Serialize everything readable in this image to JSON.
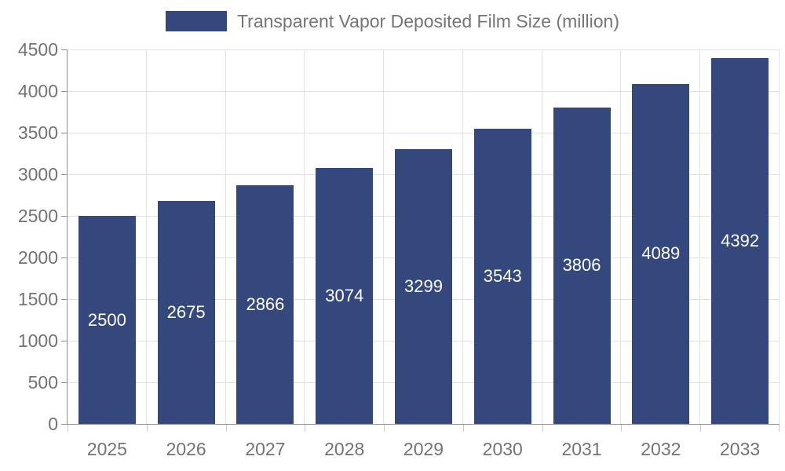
{
  "legend": {
    "label": "Transparent Vapor Deposited Film Size (million)"
  },
  "chart_data": {
    "type": "bar",
    "title": "",
    "xlabel": "",
    "ylabel": "",
    "categories": [
      "2025",
      "2026",
      "2027",
      "2028",
      "2029",
      "2030",
      "2031",
      "2032",
      "2033"
    ],
    "values": [
      2500,
      2675,
      2866,
      3074,
      3299,
      3543,
      3806,
      4089,
      4392
    ],
    "series_name": "Transparent Vapor Deposited Film Size (million)",
    "ylim": [
      0,
      4500
    ],
    "yticks": [
      0,
      500,
      1000,
      1500,
      2000,
      2500,
      3000,
      3500,
      4000,
      4500
    ],
    "grid": true,
    "legend_position": "top",
    "value_labels": "inside-center"
  },
  "colors": {
    "bar": "#35487E",
    "value_label": "#ffffff",
    "axis_text": "#737373",
    "legend_text": "#757575",
    "grid_line": "#e2e2e2",
    "axis_line": "#8f8f8f",
    "xtick_mark": "#c9c9ce"
  }
}
